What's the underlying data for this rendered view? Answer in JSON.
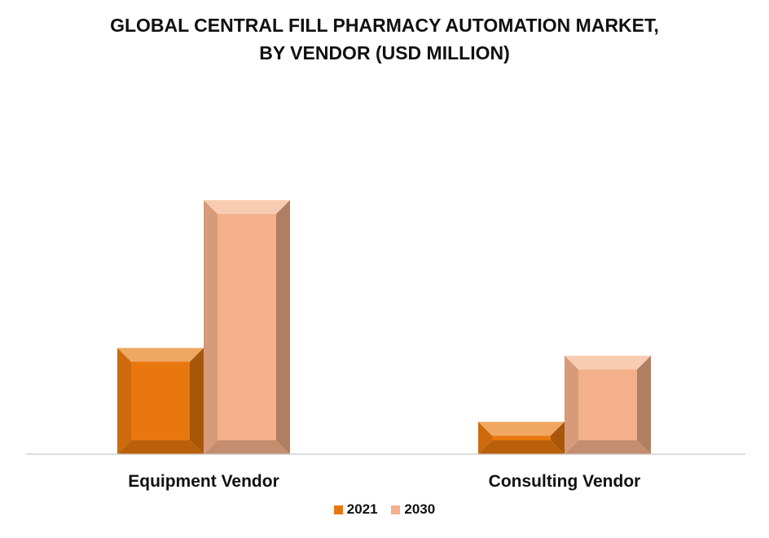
{
  "chart_data": {
    "type": "bar",
    "title_lines": [
      "GLOBAL CENTRAL FILL PHARMACY AUTOMATION MARKET,",
      "BY VENDOR (USD MILLION)"
    ],
    "categories": [
      "Equipment Vendor",
      "Consulting Vendor"
    ],
    "series": [
      {
        "name": "2021",
        "values": [
          138,
          42
        ],
        "color": "#e8780e"
      },
      {
        "name": "2030",
        "values": [
          330,
          128
        ],
        "color": "#f4b08a"
      }
    ],
    "xlabel": "",
    "ylabel": "",
    "ylim": [
      0,
      350
    ],
    "grid": false,
    "legend": "bottom-center"
  }
}
